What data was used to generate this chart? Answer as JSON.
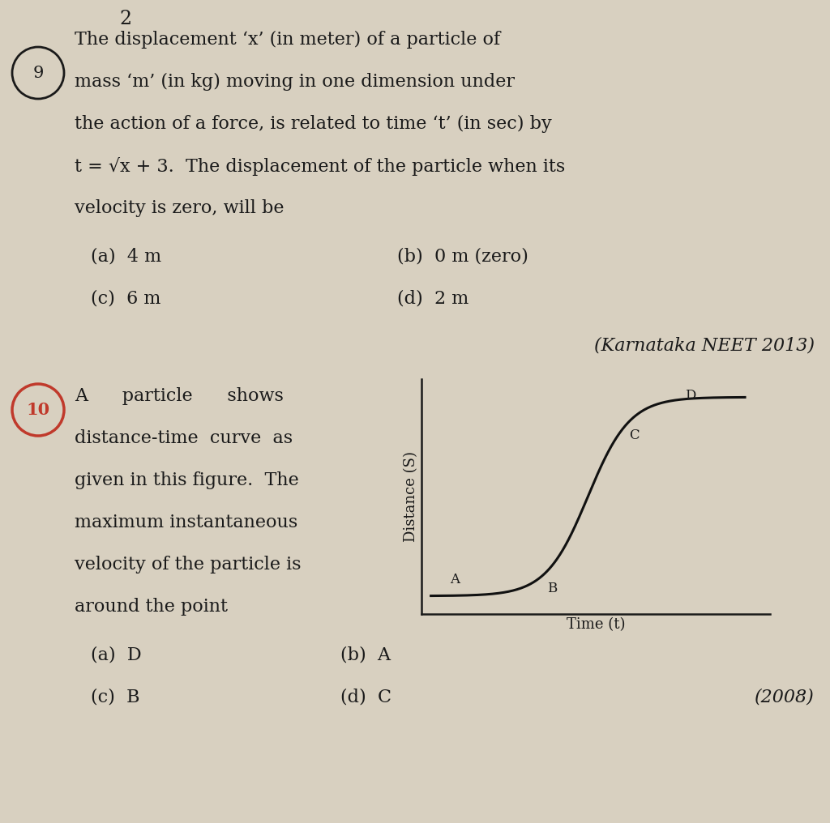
{
  "bg_color": "#b8b0a0",
  "page_bg": "#d8d0c0",
  "text_color": "#1a1a1a",
  "fig_width": 10.24,
  "fig_height": 10.16,
  "top_number": "2",
  "q9_number": "9",
  "q9_lines": [
    "The displacement ‘x’ (in meter) of a particle of",
    "mass ‘m’ (in kg) moving in one dimension under",
    "the action of a force, is related to time ‘t’ (in sec) by",
    "t = √x + 3.  The displacement of the particle when its",
    "velocity is zero, will be"
  ],
  "q9_opt_a": "(a)  4 m",
  "q9_opt_b": "(b)  0 m (zero)",
  "q9_opt_c": "(c)  6 m",
  "q9_opt_d": "(d)  2 m",
  "q9_source": "(Karnataka NEET 2013)",
  "q10_number": "10",
  "q10_circle_color": "#c0392b",
  "q10_lines": [
    "A      particle      shows",
    "distance-time  curve  as",
    "given in this figure.  The",
    "maximum instantaneous",
    "velocity of the particle is",
    "around the point"
  ],
  "q10_opt_a": "(a)  D",
  "q10_opt_b": "(b)  A",
  "q10_opt_c": "(c)  B",
  "q10_opt_d": "(d)  C",
  "q10_year": "(2008)",
  "graph_xlabel": "Time (t)",
  "graph_ylabel": "Distance (S)"
}
